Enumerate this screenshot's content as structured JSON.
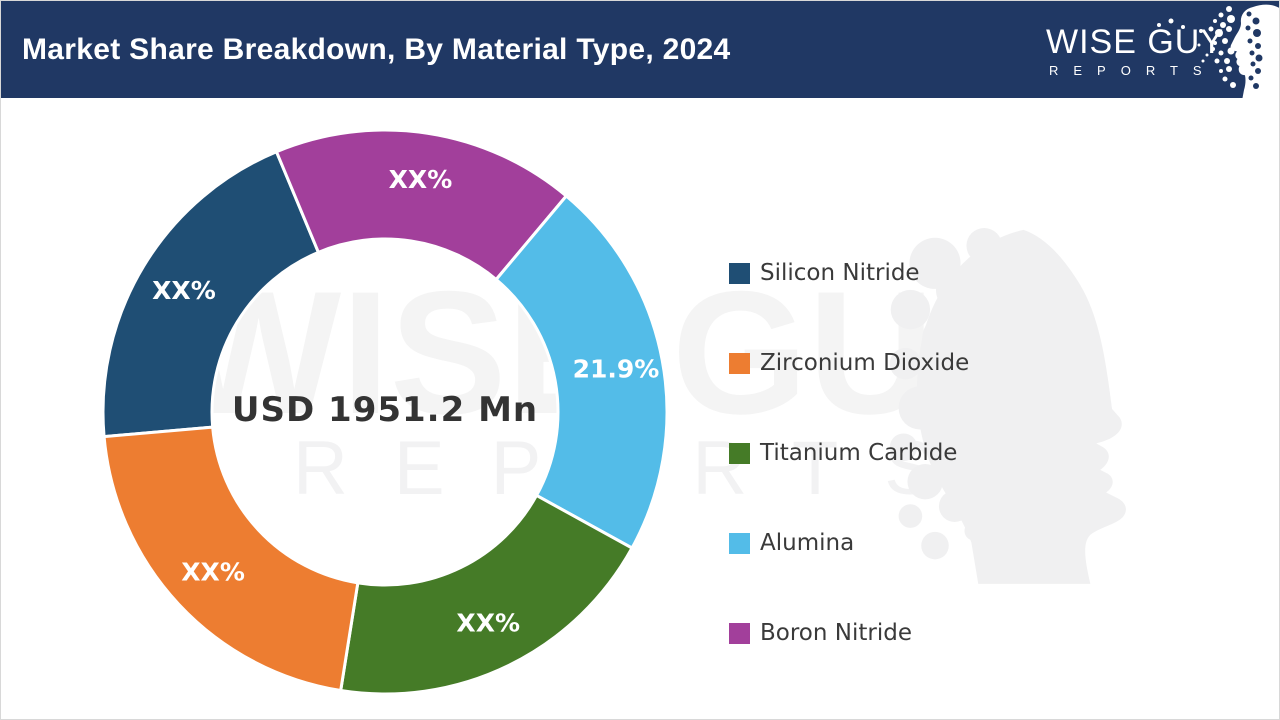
{
  "header": {
    "title": "Market Share Breakdown, By Material Type, 2024",
    "logo": {
      "name": "WISE GUY",
      "sub": "REPORTS"
    }
  },
  "watermark": {
    "line1": "WISE GUY",
    "line2": "REPORTS"
  },
  "colors": {
    "header_bg": "#203864",
    "center_text": "#333333",
    "legend_text": "#3A3A3A",
    "slice_gap": "#FFFFFF"
  },
  "chart_data": {
    "type": "pie",
    "variant": "donut",
    "title": "Market Share Breakdown, By Material Type, 2024",
    "center_label": "USD 1951.2 Mn",
    "unit": "percent market share",
    "start_angle_deg": 265,
    "legend_position": "right",
    "slices": [
      {
        "name": "Silicon Nitride",
        "value": 20.1,
        "label": "XX%",
        "color": "#1F4E74"
      },
      {
        "name": "Boron Nitride",
        "value": 17.4,
        "label": "XX%",
        "color": "#A23F9B"
      },
      {
        "name": "Alumina",
        "value": 21.9,
        "label": "21.9%",
        "color": "#53BCE8"
      },
      {
        "name": "Titanium Carbide",
        "value": 19.5,
        "label": "XX%",
        "color": "#457B27"
      },
      {
        "name": "Zirconium Dioxide",
        "value": 21.1,
        "label": "XX%",
        "color": "#ED7D31"
      }
    ],
    "legend_order": [
      "Silicon Nitride",
      "Zirconium Dioxide",
      "Titanium Carbide",
      "Alumina",
      "Boron Nitride"
    ]
  }
}
